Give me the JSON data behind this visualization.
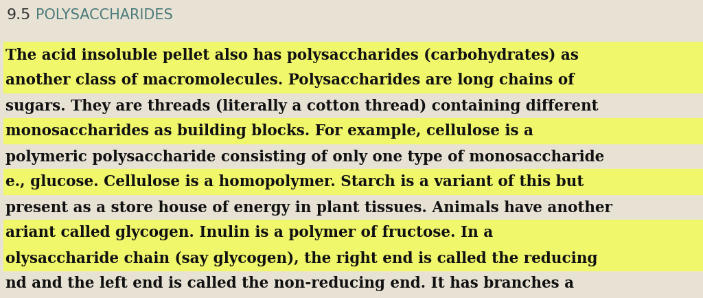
{
  "background_color": "#e8e2d5",
  "highlight_color": "#f0f76a",
  "heading_number": "9.5",
  "heading_text": "Polysaccharides",
  "heading_color": "#4a7a7a",
  "heading_number_color": "#333333",
  "body_text_color": "#111111",
  "body_lines": [
    "The acid insoluble pellet also has polysaccharides (carbohydrates) as",
    "another class of macromolecules. Polysaccharides are long chains of",
    "sugars. They are threads (literally a cotton thread) containing different",
    "monosaccharides as building blocks. For example, cellulose is a",
    "polymeric polysaccharide consisting of only one type of monosaccharide",
    "e., glucose. Cellulose is a homopolymer. Starch is a variant of this but",
    "present as a store house of energy in plant tissues. Animals have another",
    "ariant called glycogen. Inulin is a polymer of fructose. In a",
    "olysaccharide chain (say glycogen), the right end is called the reducing",
    "nd and the left end is called the non-reducing end. It has branches a"
  ],
  "highlighted_lines": [
    0,
    1,
    3,
    5,
    7,
    8
  ],
  "figwidth": 10.24,
  "figheight": 4.34,
  "dpi": 100
}
